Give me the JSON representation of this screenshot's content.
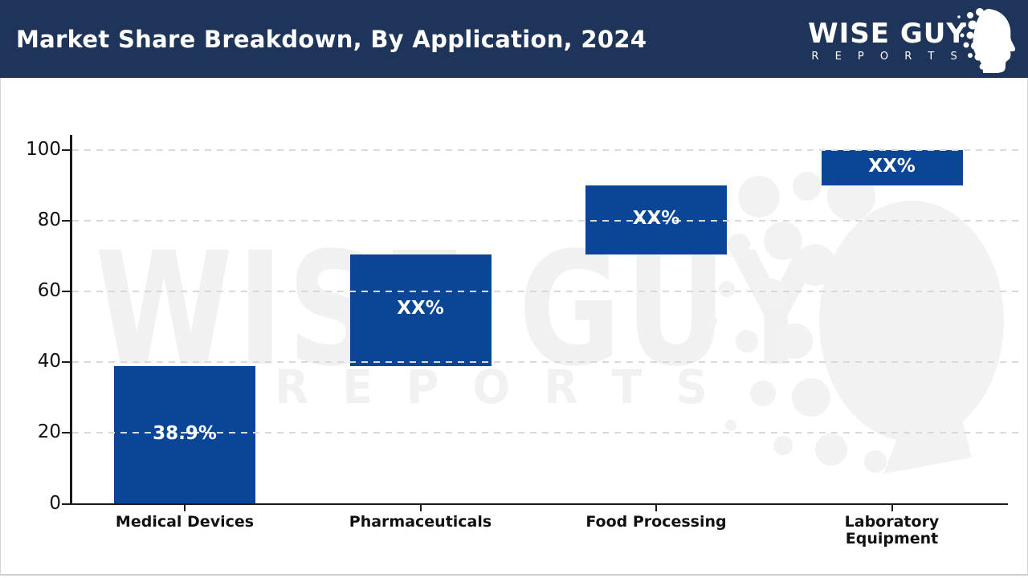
{
  "header": {
    "title": "Market Share Breakdown, By Application, 2024",
    "brand_line1": "WISE GUY",
    "brand_line2": "R E P O R T S",
    "bg_color": "#1f3459"
  },
  "watermark": {
    "line1": "WISE GUY",
    "line2": "R E P O R T S"
  },
  "icons": {
    "logo_head": "dotted-head-profile"
  },
  "chart_data": {
    "type": "bar",
    "subtype": "waterfall",
    "title": "Market Share Breakdown, By Application, 2024",
    "categories": [
      "Medical Devices",
      "Pharmaceuticals",
      "Food Processing",
      "Laboratory Equipment"
    ],
    "category_lines": [
      [
        "Medical Devices"
      ],
      [
        "Pharmaceuticals"
      ],
      [
        "Food Processing"
      ],
      [
        "Laboratory",
        "Equipment"
      ]
    ],
    "bars": [
      {
        "category": "Medical Devices",
        "start": 0,
        "end": 38.9,
        "label": "38.9%"
      },
      {
        "category": "Pharmaceuticals",
        "start": 38.9,
        "end": 70.4,
        "label": "XX%"
      },
      {
        "category": "Food Processing",
        "start": 70.4,
        "end": 90,
        "label": "XX%"
      },
      {
        "category": "Laboratory Equipment",
        "start": 90,
        "end": 100,
        "label": "XX%"
      }
    ],
    "ylim": [
      0,
      100
    ],
    "yticks": [
      0,
      20,
      40,
      60,
      80,
      100
    ],
    "ytick_labels": [
      "0",
      "20",
      "40",
      "60",
      "80",
      "100"
    ],
    "xlabel": "",
    "ylabel": "",
    "bar_color": "#0b4596",
    "bar_value_text_color": "#ffffff",
    "grid": "horizontal dashed, drawn over bars",
    "gridline_color": "#d9d9d9",
    "legend": "none"
  }
}
